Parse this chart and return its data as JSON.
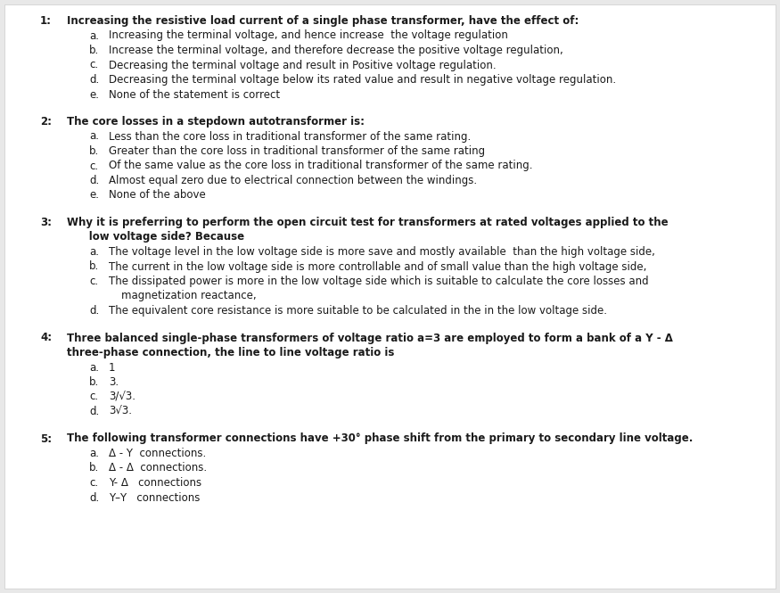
{
  "background_color": "#ffffff",
  "text_color": "#1a1a1a",
  "page_bg": "#e8e8e8",
  "font_size": 8.5,
  "bold_font_size": 8.5,
  "q1": {
    "num": "1:",
    "bold": "Increasing the resistive load current of a single phase transformer, have the effect of:",
    "options": [
      [
        "a.",
        "Increasing the terminal voltage, and hence increase  the voltage regulation"
      ],
      [
        "b.",
        "Increase the terminal voltage, and therefore decrease the positive voltage regulation,"
      ],
      [
        "c.",
        "Decreasing the terminal voltage and result in Positive voltage regulation."
      ],
      [
        "d.",
        "Decreasing the terminal voltage below its rated value and result in negative voltage regulation."
      ],
      [
        "e.",
        "None of the statement is correct"
      ]
    ]
  },
  "q2": {
    "num": "2:",
    "bold": "The core losses in a stepdown autotransformer is:",
    "options": [
      [
        "a.",
        "Less than the core loss in traditional transformer of the same rating."
      ],
      [
        "b.",
        "Greater than the core loss in traditional transformer of the same rating"
      ],
      [
        "c.",
        "Of the same value as the core loss in traditional transformer of the same rating."
      ],
      [
        "d.",
        "Almost equal zero due to electrical connection between the windings."
      ],
      [
        "e.",
        "None of the above"
      ]
    ]
  },
  "q3": {
    "num": "3:",
    "bold_line1": "Why it is preferring to perform the open circuit test for transformers at rated voltages applied to the",
    "bold_line2": "      low voltage side? Because",
    "options": [
      [
        "a.",
        "The voltage level in the low voltage side is more save and mostly available  than the high voltage side,",
        null
      ],
      [
        "b.",
        "The current in the low voltage side is more controllable and of small value than the high voltage side,",
        null
      ],
      [
        "c.",
        "The dissipated power is more in the low voltage side which is suitable to calculate the core losses and",
        "magnetization reactance,"
      ],
      [
        "d.",
        "The equivalent core resistance is more suitable to be calculated in the in the low voltage side.",
        null
      ]
    ]
  },
  "q4": {
    "num": "4:",
    "bold_line1": "Three balanced single-phase transformers of voltage ratio a=3 are employed to form a bank of a Y - Δ",
    "bold_line2": "three-phase connection, the line to line voltage ratio is",
    "options": [
      [
        "a.",
        "1"
      ],
      [
        "b.",
        "3."
      ],
      [
        "c.",
        "3/√3."
      ],
      [
        "d.",
        "3√3."
      ]
    ]
  },
  "q5": {
    "num": "5:",
    "bold": "The following transformer connections have +30° phase shift from the primary to secondary line voltage.",
    "options": [
      [
        "a.",
        "Δ - Y  connections."
      ],
      [
        "b.",
        "Δ - Δ  connections."
      ],
      [
        "c.",
        "Y- Δ   connections"
      ],
      [
        "d.",
        "Y–Y   connections"
      ]
    ]
  }
}
